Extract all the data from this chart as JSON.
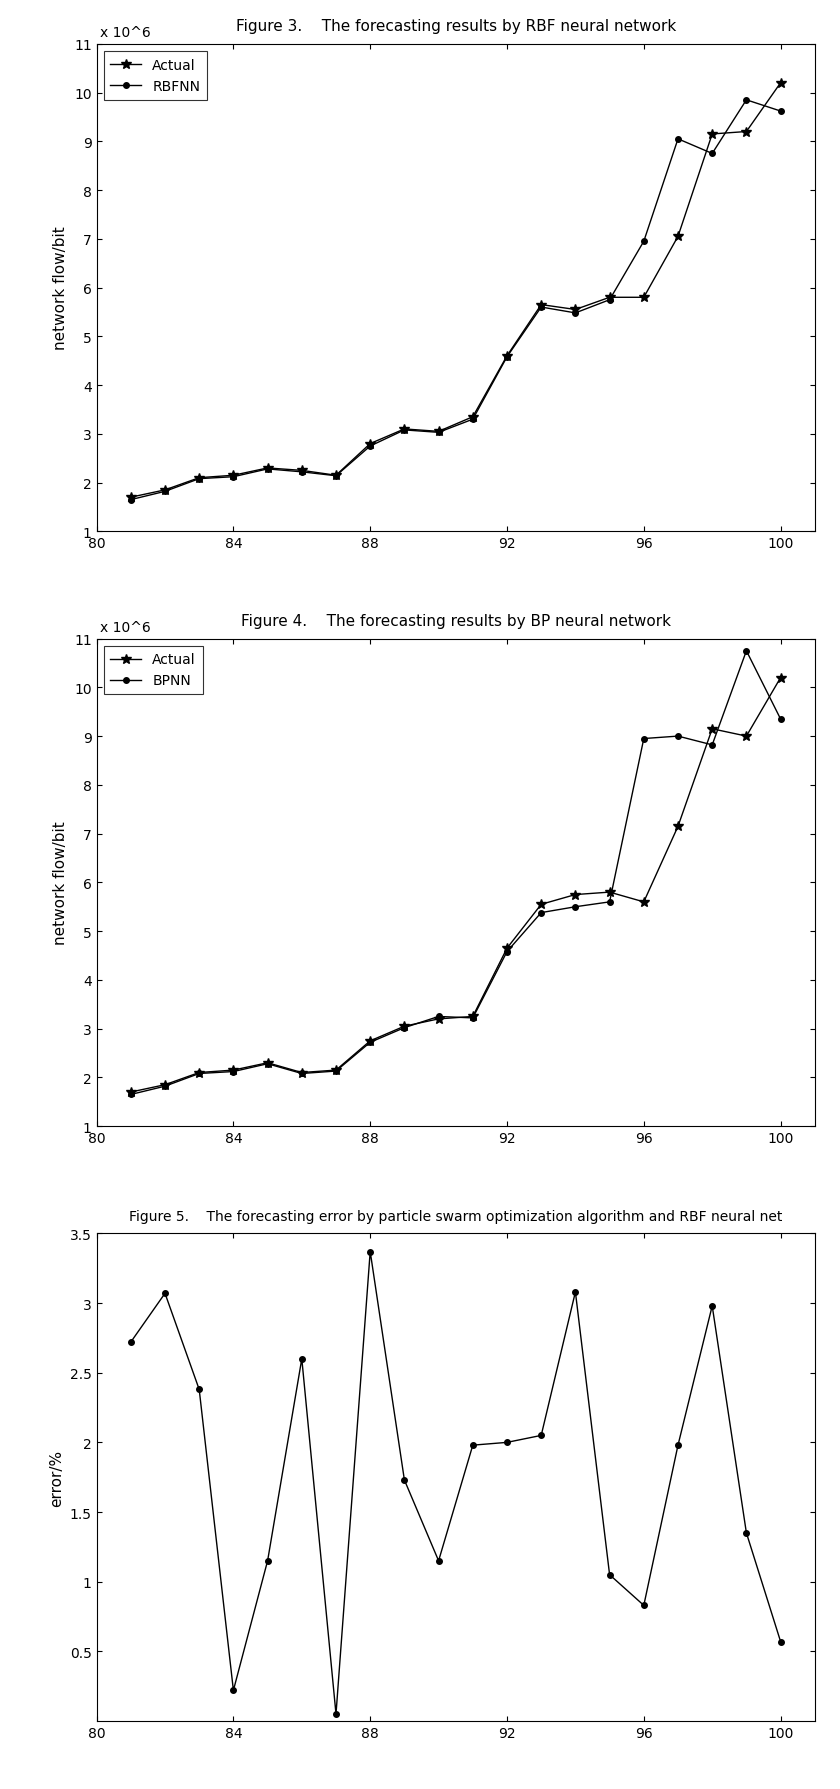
{
  "fig3": {
    "title": "Figure 3.    The forecasting results by RBF neural network",
    "ylabel": "network flow/bit",
    "scale_label": "x 10^6",
    "xticks": [
      80,
      84,
      88,
      92,
      96,
      100
    ],
    "ytick_labels": [
      "1",
      "2",
      "3",
      "4",
      "5",
      "6",
      "7",
      "8",
      "9",
      "10",
      "11"
    ],
    "actual_x": [
      81,
      82,
      83,
      84,
      85,
      86,
      87,
      88,
      89,
      90,
      91,
      92,
      93,
      94,
      95,
      96,
      97,
      98,
      99,
      100
    ],
    "actual_y": [
      1.7,
      1.85,
      2.1,
      2.15,
      2.3,
      2.25,
      2.15,
      2.8,
      3.1,
      3.05,
      3.35,
      4.6,
      5.65,
      5.55,
      5.8,
      5.8,
      7.05,
      9.15,
      9.2,
      10.2
    ],
    "pred_x": [
      81,
      82,
      83,
      84,
      85,
      86,
      87,
      88,
      89,
      90,
      91,
      92,
      93,
      94,
      95,
      96,
      97,
      98,
      99,
      100
    ],
    "pred_y": [
      1.65,
      1.82,
      2.08,
      2.12,
      2.28,
      2.22,
      2.14,
      2.75,
      3.08,
      3.03,
      3.3,
      4.58,
      5.6,
      5.48,
      5.75,
      6.95,
      9.05,
      8.75,
      9.85,
      9.62
    ],
    "legend": [
      "Actual",
      "RBFNN"
    ]
  },
  "fig4": {
    "title": "Figure 4.    The forecasting results by BP neural network",
    "ylabel": "network flow/bit",
    "scale_label": "x 10^6",
    "xticks": [
      80,
      84,
      88,
      92,
      96,
      100
    ],
    "ytick_labels": [
      "1",
      "2",
      "3",
      "4",
      "5",
      "6",
      "7",
      "8",
      "9",
      "10",
      "11"
    ],
    "actual_x": [
      81,
      82,
      83,
      84,
      85,
      86,
      87,
      88,
      89,
      90,
      91,
      92,
      93,
      94,
      95,
      96,
      97,
      98,
      99,
      100
    ],
    "actual_y": [
      1.7,
      1.85,
      2.1,
      2.15,
      2.3,
      2.1,
      2.15,
      2.75,
      3.05,
      3.2,
      3.25,
      4.65,
      5.55,
      5.75,
      5.8,
      5.6,
      7.15,
      9.15,
      9.0,
      10.2
    ],
    "pred_x": [
      81,
      82,
      83,
      84,
      85,
      86,
      87,
      88,
      89,
      90,
      91,
      92,
      93,
      94,
      95,
      96,
      97,
      98,
      99,
      100
    ],
    "pred_y": [
      1.65,
      1.82,
      2.08,
      2.12,
      2.28,
      2.08,
      2.13,
      2.72,
      3.02,
      3.25,
      3.22,
      4.58,
      5.38,
      5.5,
      5.6,
      8.95,
      9.0,
      8.82,
      10.75,
      9.35
    ],
    "legend": [
      "Actual",
      "BPNN"
    ]
  },
  "fig5": {
    "title": "Figure 5.    The forecasting error by particle swarm optimization algorithm and RBF neural net",
    "ylabel": "error/%",
    "xticks": [
      80,
      84,
      88,
      92,
      96,
      100
    ],
    "yticks": [
      0.5,
      1.0,
      1.5,
      2.0,
      2.5,
      3.0,
      3.5
    ],
    "ytick_labels": [
      "0.5",
      "1",
      "1.5",
      "2",
      "2.5",
      "3",
      "3.5"
    ],
    "error_x": [
      81,
      82,
      83,
      84,
      85,
      86,
      87,
      88,
      89,
      90,
      91,
      92,
      93,
      94,
      95,
      96,
      97,
      98,
      99,
      100
    ],
    "error_y": [
      2.72,
      3.07,
      2.38,
      0.22,
      1.15,
      2.6,
      0.05,
      3.37,
      1.73,
      1.15,
      1.98,
      2.0,
      2.05,
      3.08,
      1.05,
      0.83,
      1.98,
      2.98,
      1.35,
      0.57
    ]
  },
  "bg_color": "#ffffff",
  "line_color": "#000000"
}
